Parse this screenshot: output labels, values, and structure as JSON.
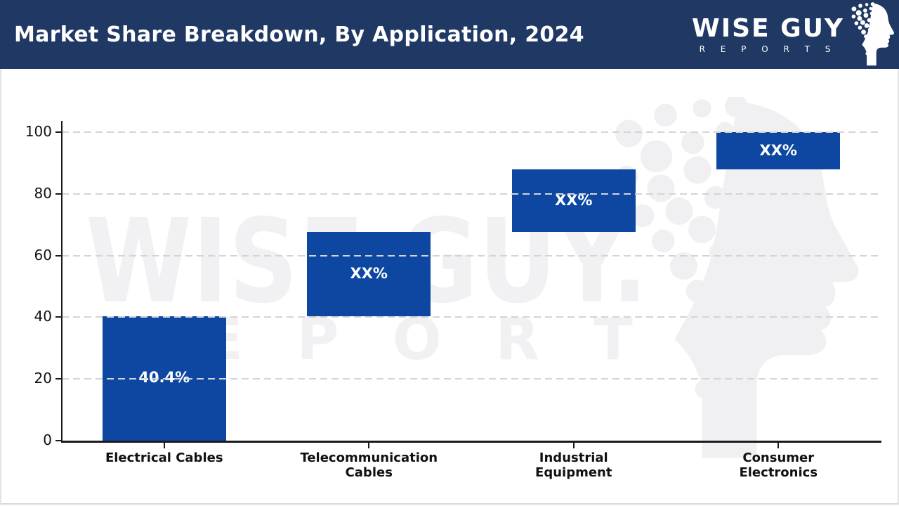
{
  "header": {
    "title": "Market Share Breakdown, By Application, 2024",
    "logo": {
      "line1": "WISE GUY",
      "line2": "R E P O R T S"
    }
  },
  "watermark": {
    "line1": "WISE GUY.",
    "line2": "R E P O R T S"
  },
  "chart_data": {
    "type": "bar",
    "variant": "waterfall",
    "title": "Market Share Breakdown, By Application, 2024",
    "categories": [
      [
        "Electrical Cables"
      ],
      [
        "Telecommunication",
        "Cables"
      ],
      [
        "Industrial",
        "Equipment"
      ],
      [
        "Consumer",
        "Electronics"
      ]
    ],
    "segments": [
      {
        "category": "Electrical Cables",
        "from": 0,
        "to": 40.4,
        "label": "40.4%"
      },
      {
        "category": "Telecommunication Cables",
        "from": 40.4,
        "to": 67.6,
        "label": "XX%"
      },
      {
        "category": "Industrial Equipment",
        "from": 67.6,
        "to": 87.9,
        "label": "XX%"
      },
      {
        "category": "Consumer Electronics",
        "from": 87.9,
        "to": 100,
        "label": "XX%"
      }
    ],
    "ylim": [
      0,
      100
    ],
    "yticks": [
      0,
      20,
      40,
      60,
      80,
      100
    ],
    "xlabel": "",
    "ylabel": "",
    "grid": "horizontal-dashed",
    "legend": "none",
    "bar_color": "#0d47a1",
    "bar_label_color": "#ffffff",
    "axis_color": "#1a1a1a",
    "grid_color": "#d4d4d4",
    "header_color": "#1f3864",
    "watermark_color": "#f1f1f4"
  }
}
